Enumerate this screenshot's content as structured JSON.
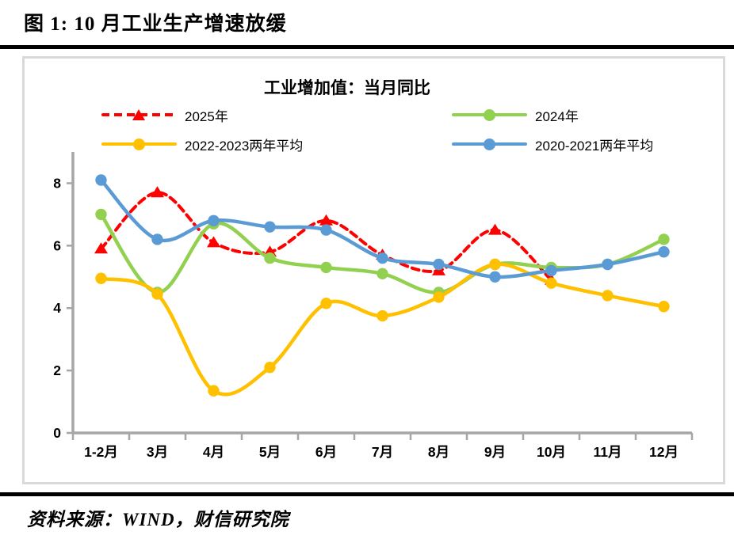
{
  "figure": {
    "title": "图 1:  10 月工业生产增速放缓",
    "source": "资料来源：WIND，财信研究院"
  },
  "chart_data": {
    "type": "line",
    "title": "工业增加值：当月同比",
    "categories": [
      "1-2月",
      "3月",
      "4月",
      "5月",
      "6月",
      "7月",
      "8月",
      "9月",
      "10月",
      "11月",
      "12月"
    ],
    "series": [
      {
        "name": "2025年",
        "color": "#FF0000",
        "line_style": "dashed",
        "marker": "triangle",
        "values": [
          5.9,
          7.7,
          6.1,
          5.8,
          6.8,
          5.7,
          5.2,
          6.5,
          4.9,
          null,
          null
        ]
      },
      {
        "name": "2024年",
        "color": "#92D050",
        "line_style": "solid",
        "marker": "circle",
        "values": [
          7.0,
          4.5,
          6.7,
          5.6,
          5.3,
          5.1,
          4.5,
          5.4,
          5.3,
          5.4,
          6.2
        ]
      },
      {
        "name": "2022-2023两年平均",
        "color": "#FFC000",
        "line_style": "solid",
        "marker": "circle",
        "values": [
          4.95,
          4.45,
          1.35,
          2.1,
          4.15,
          3.75,
          4.35,
          5.4,
          4.8,
          4.4,
          4.05
        ]
      },
      {
        "name": "2020-2021两年平均",
        "color": "#5B9BD5",
        "line_style": "solid",
        "marker": "circle",
        "values": [
          8.1,
          6.2,
          6.8,
          6.6,
          6.5,
          5.6,
          5.4,
          5.0,
          5.2,
          5.4,
          5.8
        ]
      }
    ],
    "ylim": [
      0,
      9
    ],
    "yticks": [
      0,
      2,
      4,
      6,
      8
    ],
    "grid": false,
    "legend_position": "top",
    "axis_color": "#A6A6A6",
    "panel_border_color": "#D9D9D9"
  }
}
